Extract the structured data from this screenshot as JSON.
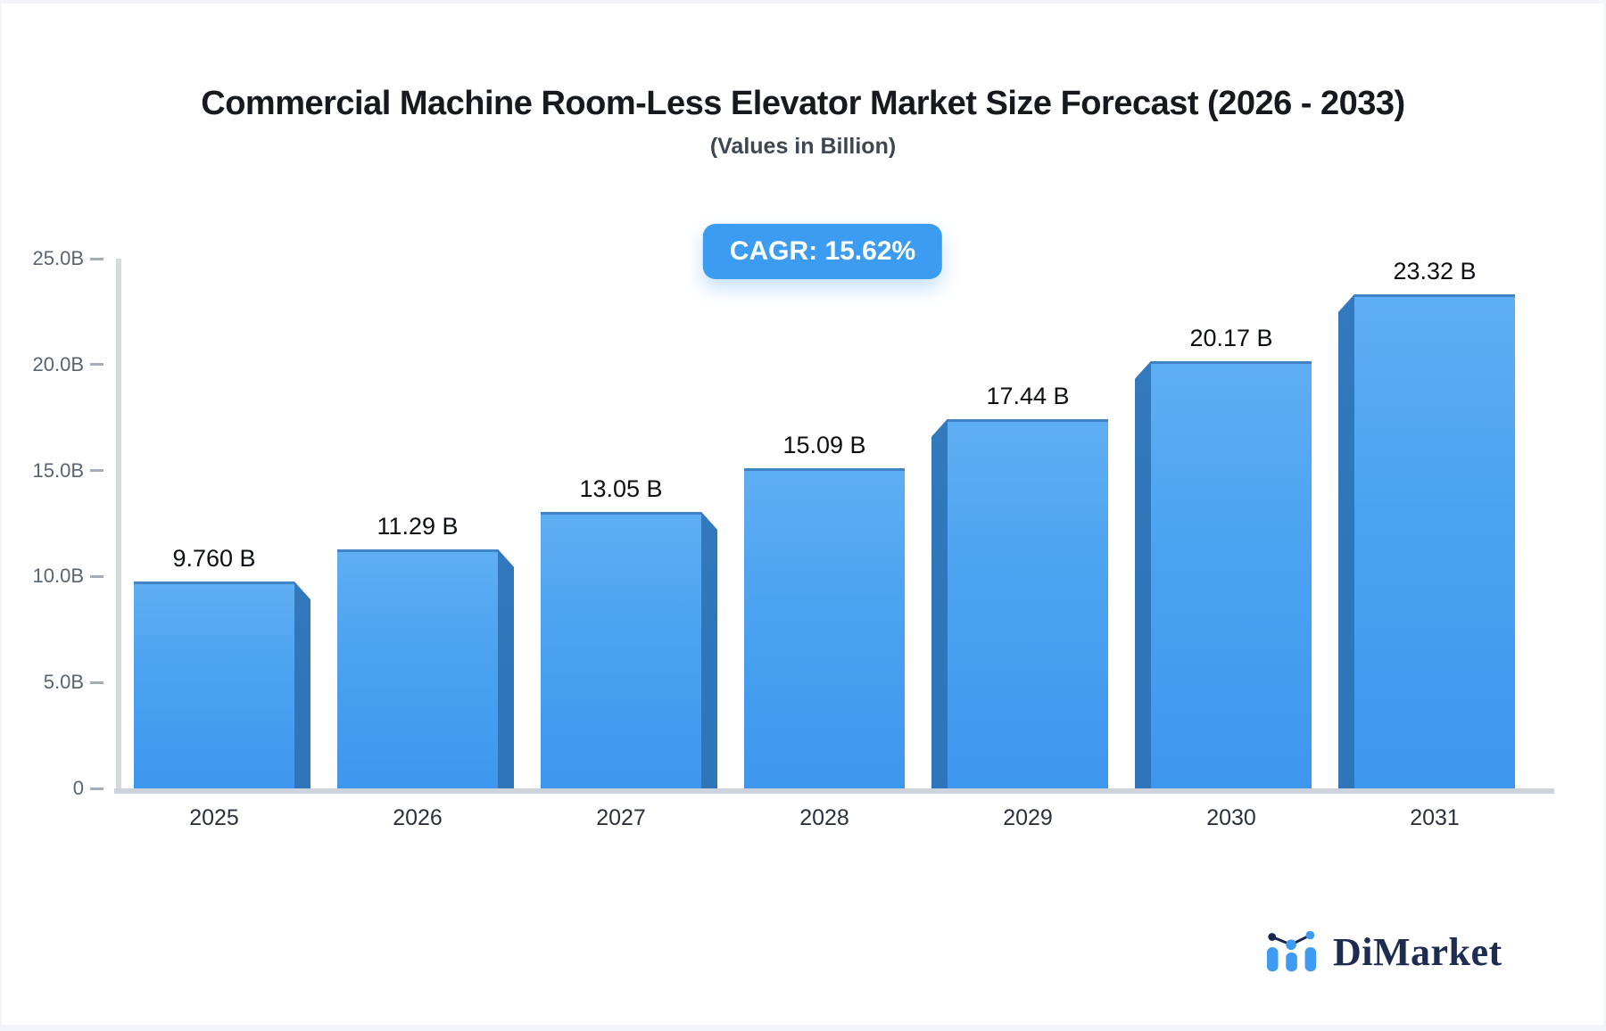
{
  "chart_data": {
    "type": "bar",
    "title": "Commercial Machine Room-Less Elevator Market Size Forecast (2026 - 2033)",
    "subtitle": "(Values in Billion)",
    "annotation": "CAGR: 15.62%",
    "categories": [
      "2025",
      "2026",
      "2027",
      "2028",
      "2029",
      "2030",
      "2031"
    ],
    "values": [
      9.76,
      11.29,
      13.05,
      15.09,
      17.44,
      20.17,
      23.32
    ],
    "value_labels": [
      "9.760 B",
      "11.29 B",
      "13.05 B",
      "15.09 B",
      "17.44 B",
      "20.17 B",
      "23.32 B"
    ],
    "ylim": [
      0,
      25
    ],
    "yticks": [
      {
        "value": 0,
        "label": "0"
      },
      {
        "value": 5,
        "label": "5.0B"
      },
      {
        "value": 10,
        "label": "10.0B"
      },
      {
        "value": 15,
        "label": "15.0B"
      },
      {
        "value": 20,
        "label": "20.0B"
      },
      {
        "value": 25,
        "label": "25.0B"
      }
    ],
    "xlabel": "",
    "ylabel": "",
    "grid": false,
    "legend": "none",
    "bar_3d_effect": "side face toward center; center bar flat"
  },
  "branding": {
    "logo_text": "DiMarket",
    "logo_icon": "mini-bar-chart-with-trendline-icon"
  },
  "style": {
    "background": "#FFFFFF",
    "edge_strip": "#F3F5F8",
    "title_color": "#16191D",
    "subtitle_color": "#3E4651",
    "badge_bg": "#3C9CF1",
    "badge_text": "#FFFFFF",
    "bar_face_top": "#5FAEF3",
    "bar_face_bottom": "#3E97EE",
    "bar_side": "#2E76B9",
    "bar_top_edge": "#4083C6",
    "axis_line": "#D5D9E0",
    "baseline": "#CED3DB",
    "tick": "#A6ADB8",
    "tick_label_color": "#5A6370",
    "value_label_color": "#0C0F13",
    "category_label_color": "#2C323C",
    "logo_text_color": "#1D2C50",
    "logo_icon_blue": "#3F9BF2",
    "logo_icon_navy": "#17264B"
  }
}
